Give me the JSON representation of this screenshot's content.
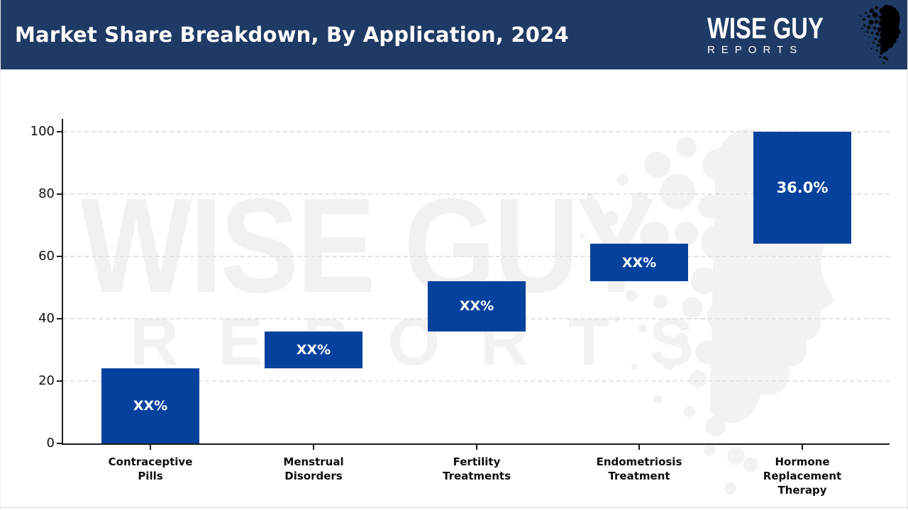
{
  "header": {
    "title": "Market Share Breakdown, By Application, 2024",
    "logo": {
      "name": "WISE GUY",
      "sub": "REPORTS"
    }
  },
  "watermark": {
    "name": "WISE GUY",
    "sub": "REPORTS"
  },
  "colors": {
    "header_bg": "#1f3a64",
    "bar": "#05429e",
    "bar_label": "#ffffff",
    "gridline": "#e2e2e2",
    "axis": "#1a1a1a",
    "watermark": "#f1f1f1"
  },
  "chart_data": {
    "type": "bar",
    "subtype": "waterfall",
    "title": "Market Share Breakdown, By Application, 2024",
    "categories": [
      "Contraceptive Pills",
      "Menstrual Disorders",
      "Fertility Treatments",
      "Endometriosis Treatment",
      "Hormone Replacement Therapy"
    ],
    "category_lines": [
      [
        "Contraceptive",
        "Pills"
      ],
      [
        "Menstrual",
        "Disorders"
      ],
      [
        "Fertility",
        "Treatments"
      ],
      [
        "Endometriosis",
        "Treatment"
      ],
      [
        "Hormone",
        "Replacement",
        "Therapy"
      ]
    ],
    "segments": [
      {
        "category": "Contraceptive Pills",
        "start": 0,
        "end": 24,
        "value_pct": 24,
        "label": "XX%"
      },
      {
        "category": "Menstrual Disorders",
        "start": 24,
        "end": 36,
        "value_pct": 12,
        "label": "XX%"
      },
      {
        "category": "Fertility Treatments",
        "start": 36,
        "end": 52,
        "value_pct": 16,
        "label": "XX%"
      },
      {
        "category": "Endometriosis Treatment",
        "start": 52,
        "end": 64,
        "value_pct": 12,
        "label": "XX%"
      },
      {
        "category": "Hormone Replacement Therapy",
        "start": 64,
        "end": 100,
        "value_pct": 36,
        "label": "36.0%"
      }
    ],
    "y_ticks": [
      0,
      20,
      40,
      60,
      80,
      100
    ],
    "ylim": [
      0,
      100
    ],
    "xlabel": "",
    "ylabel": "",
    "grid": "horizontal-dashed",
    "legend": "none"
  }
}
